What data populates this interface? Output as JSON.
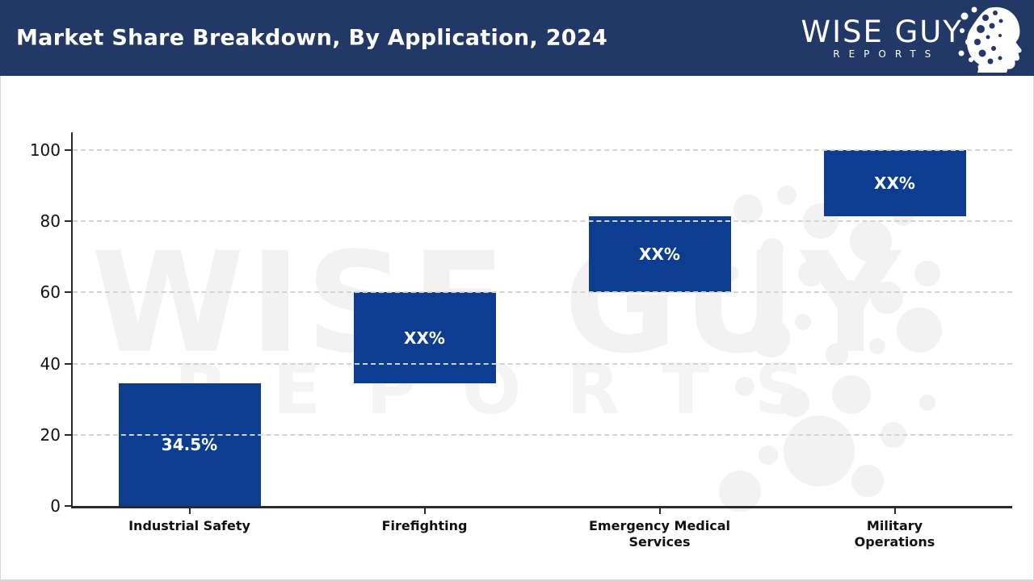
{
  "header": {
    "title": "Market Share Breakdown, By Application, 2024",
    "bg_color": "#223866",
    "logo": {
      "line1": "WISE GUY",
      "line2": "REPORTS"
    }
  },
  "watermark": {
    "line1": "WISE GUY",
    "line2": "REPORTS"
  },
  "chart_data": {
    "type": "bar",
    "subtype": "waterfall",
    "title": "Market Share Breakdown, By Application, 2024",
    "xlabel": "",
    "ylabel": "",
    "ylim": [
      0,
      100
    ],
    "yticks": [
      0,
      20,
      40,
      60,
      80,
      100
    ],
    "grid": "horizontal-dashed-over-bars",
    "legend": "none",
    "bar_color": "#0c3d91",
    "value_label_color": "#ffffff",
    "categories": [
      "Industrial Safety",
      "Firefighting",
      "Emergency Medical Services",
      "Military Operations"
    ],
    "category_lines": [
      [
        "Industrial Safety"
      ],
      [
        "Firefighting"
      ],
      [
        "Emergency Medical",
        "Services"
      ],
      [
        "Military",
        "Operations"
      ]
    ],
    "segments": [
      {
        "category": "Industrial Safety",
        "start": 0,
        "end": 34.5,
        "label": "34.5%"
      },
      {
        "category": "Firefighting",
        "start": 34.5,
        "end": 60,
        "label": "XX%"
      },
      {
        "category": "Emergency Medical Services",
        "start": 60,
        "end": 81.5,
        "label": "XX%"
      },
      {
        "category": "Military Operations",
        "start": 81.5,
        "end": 100,
        "label": "XX%"
      }
    ]
  }
}
